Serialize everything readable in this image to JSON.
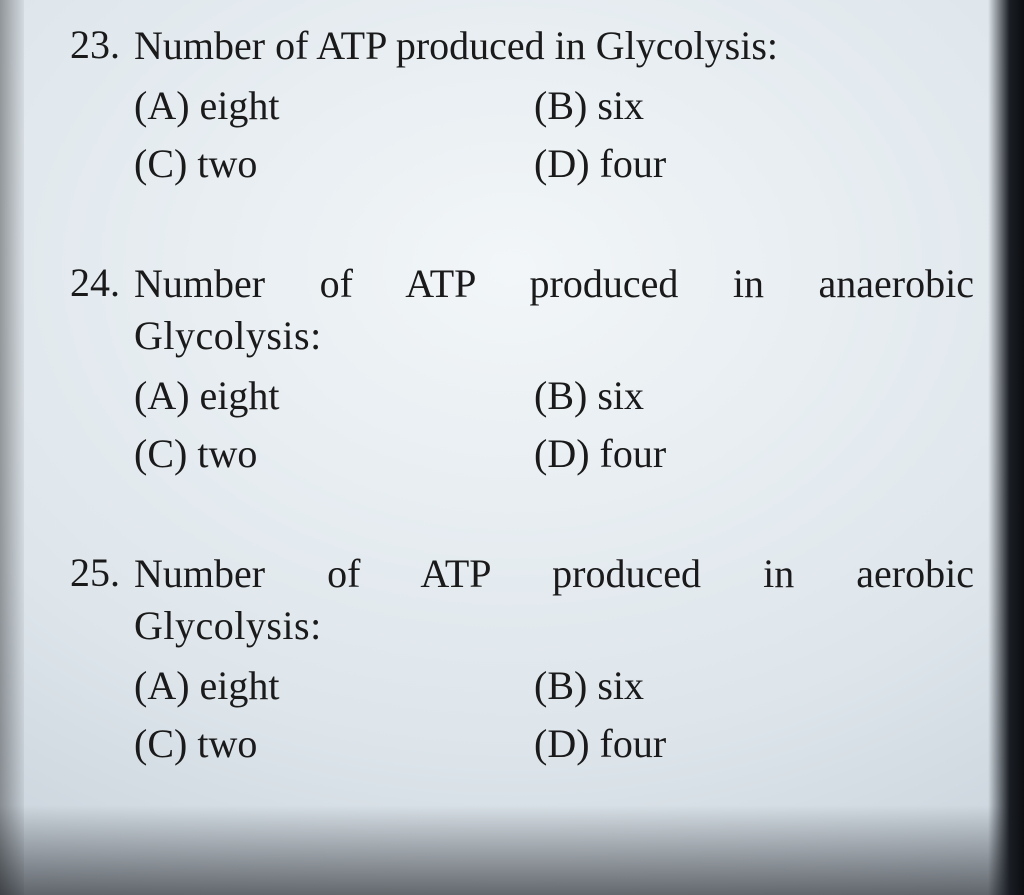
{
  "text_color": "#1a1a1a",
  "background_gradient": [
    "#f2f6f8",
    "#dde5eb",
    "#bcc6d0",
    "#9aa4b0"
  ],
  "font_family": "Times New Roman",
  "base_fontsize_pt": 30,
  "questions": [
    {
      "number": "23.",
      "text": "Number of ATP produced in Glycolysis:",
      "text_line2": "",
      "options": {
        "A": {
          "label": "(A)",
          "text": "eight"
        },
        "B": {
          "label": "(B)",
          "text": "six"
        },
        "C": {
          "label": "(C)",
          "text": "two"
        },
        "D": {
          "label": "(D)",
          "text": "four"
        }
      }
    },
    {
      "number": "24.",
      "text": "Number of ATP produced in anaerobic",
      "text_line2": "Glycolysis:",
      "options": {
        "A": {
          "label": "(A)",
          "text": "eight"
        },
        "B": {
          "label": "(B)",
          "text": "six"
        },
        "C": {
          "label": "(C)",
          "text": "two"
        },
        "D": {
          "label": "(D)",
          "text": "four"
        }
      }
    },
    {
      "number": "25.",
      "text": "Number of ATP produced in aerobic",
      "text_line2": "Glycolysis:",
      "options": {
        "A": {
          "label": "(A)",
          "text": "eight"
        },
        "B": {
          "label": "(B)",
          "text": "six"
        },
        "C": {
          "label": "(C)",
          "text": "two"
        },
        "D": {
          "label": "(D)",
          "text": "four"
        }
      }
    }
  ]
}
